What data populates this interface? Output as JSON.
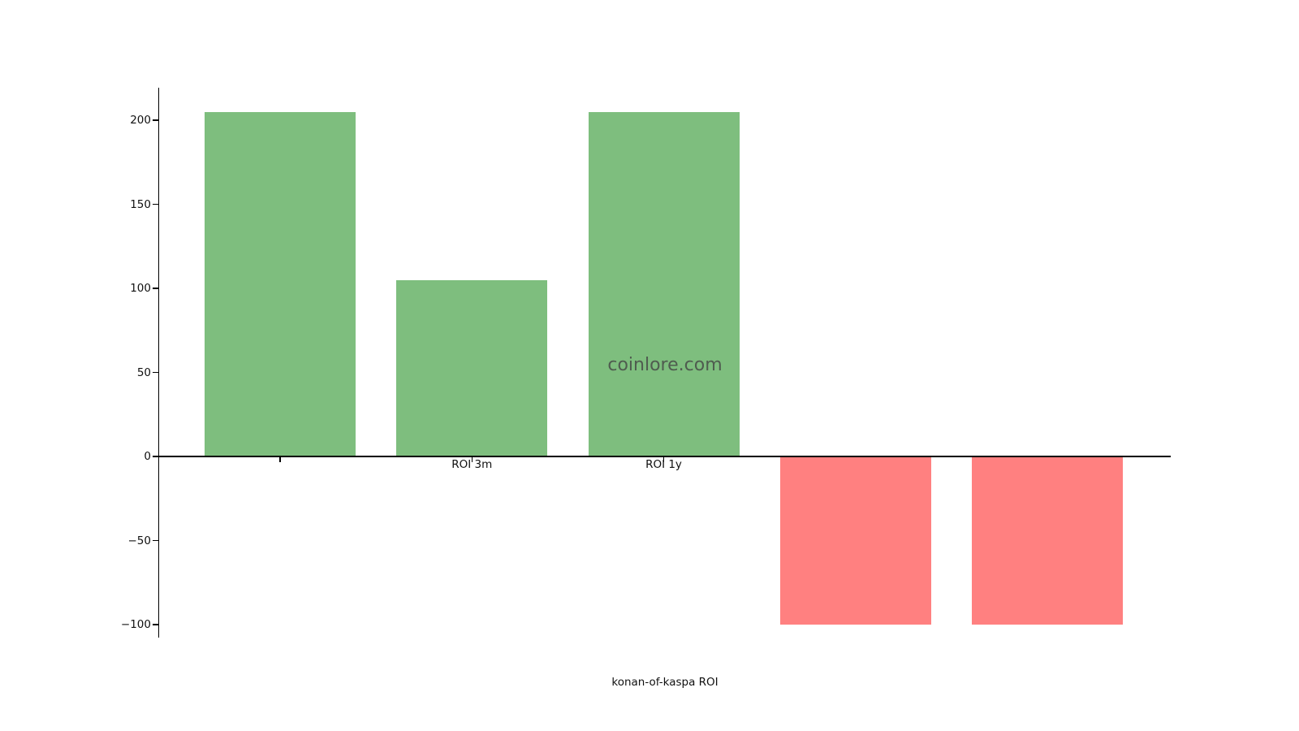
{
  "chart_data": {
    "type": "bar",
    "title": "",
    "xlabel": "konan-of-kaspa ROI",
    "watermark": "coinlore.com",
    "categories": [
      "",
      "ROI 3m",
      "ROI 1y",
      "",
      ""
    ],
    "values": [
      205,
      105,
      205,
      -100,
      -100
    ],
    "yticks": [
      200,
      150,
      100,
      50,
      0,
      -50,
      -100
    ],
    "ytick_labels": [
      "200",
      "150",
      "100",
      "50",
      "0",
      "−50",
      "−100"
    ],
    "ylim": [
      -108,
      219
    ],
    "grid": false,
    "legend": "none",
    "colors": {
      "positive_bar": "#7ebe7e",
      "negative_bar": "#ff8080",
      "axis": "#000000",
      "text": "#111111",
      "watermark": "#444444"
    }
  }
}
